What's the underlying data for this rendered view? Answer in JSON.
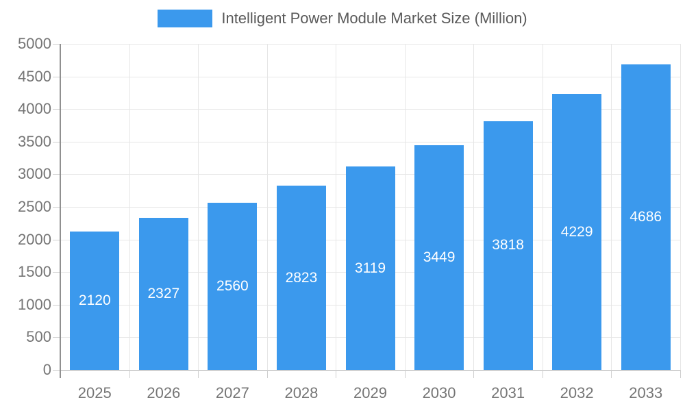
{
  "legend": {
    "label": "Intelligent Power Module Market Size (Million)"
  },
  "chart_data": {
    "type": "bar",
    "title": "Intelligent Power Module Market Size (Million)",
    "series_name": "Intelligent Power Module Market Size (Million)",
    "categories": [
      "2025",
      "2026",
      "2027",
      "2028",
      "2029",
      "2030",
      "2031",
      "2032",
      "2033"
    ],
    "values": [
      2120,
      2327,
      2560,
      2823,
      3119,
      3449,
      3818,
      4229,
      4686
    ],
    "xlabel": "",
    "ylabel": "",
    "ylim": [
      0,
      5000
    ],
    "ytick_step": 500,
    "grid": true,
    "legend_position": "top",
    "value_labels": "centered-inside-bars"
  },
  "style": {
    "bar_color": "#3B99ED",
    "grid_color": "#E6E6E6",
    "baseline_color": "#B5B5B5",
    "axis_line_color": "#909090",
    "tick_color": "#CFCFCF",
    "axis_label_color": "#757575",
    "legend_text_color": "#595959",
    "value_label_color": "#FFFFFF",
    "background": "#FFFFFF"
  }
}
